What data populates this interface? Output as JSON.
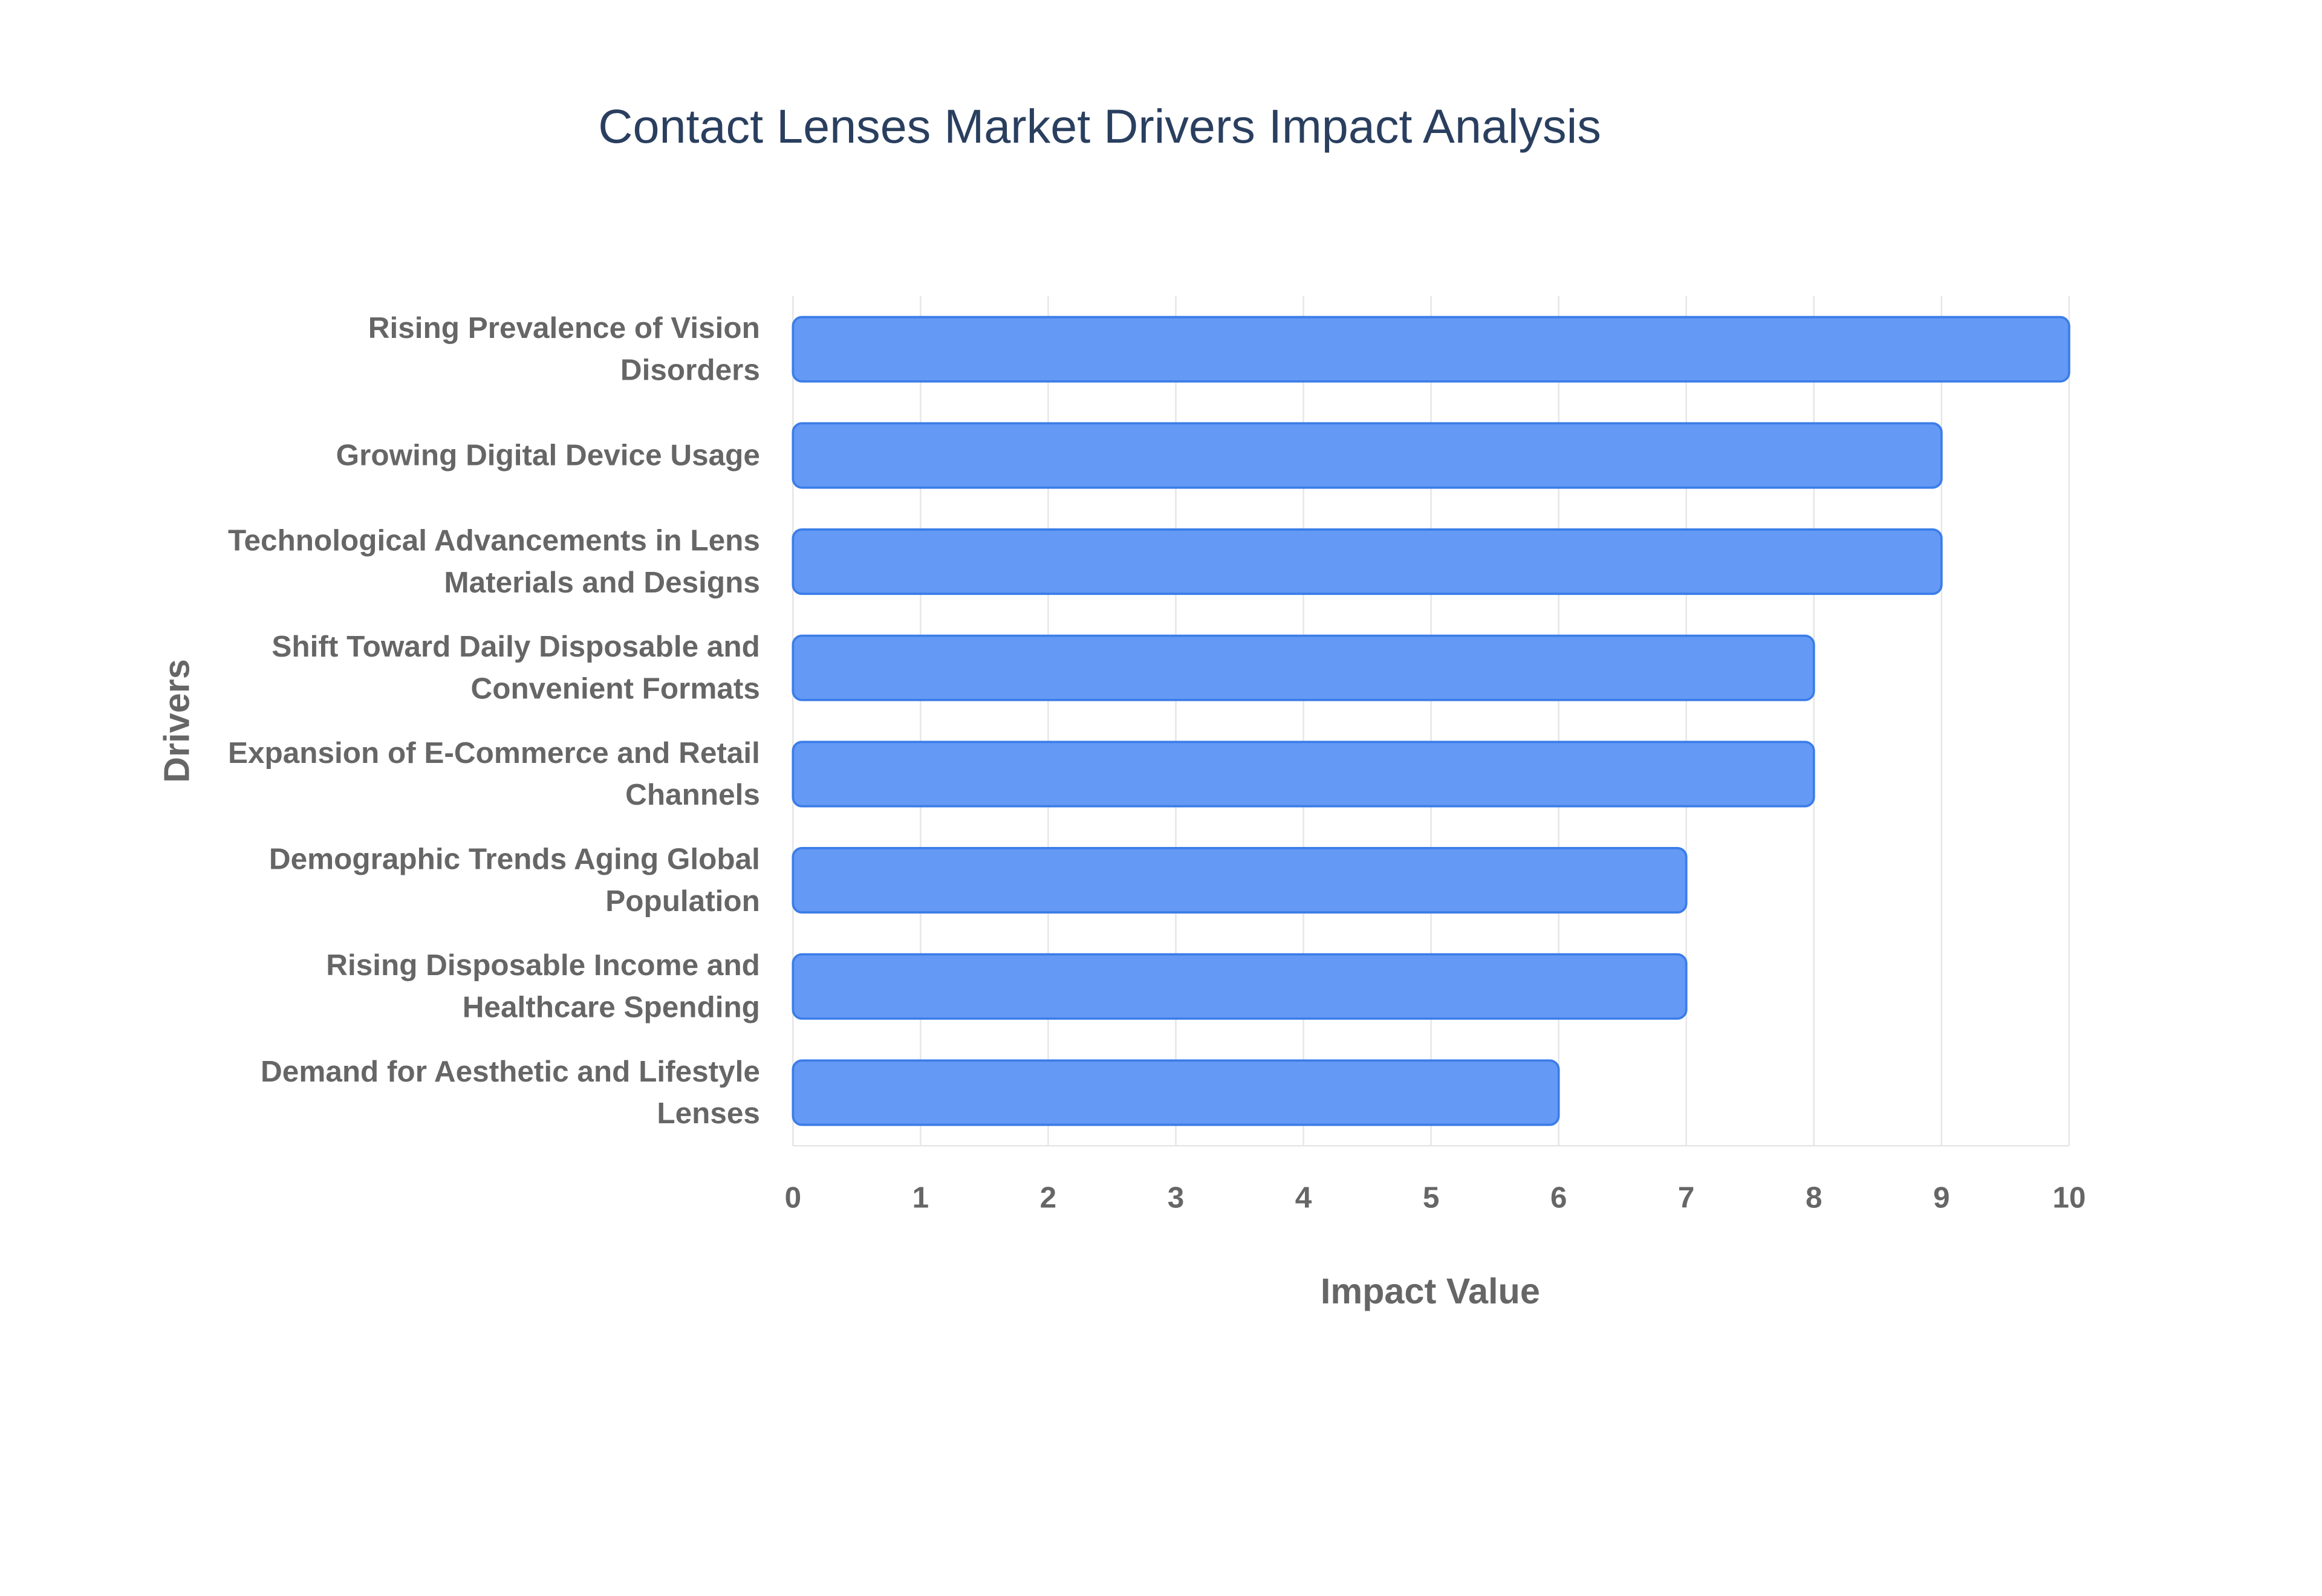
{
  "chart_data": {
    "type": "bar",
    "orientation": "horizontal",
    "title": "Contact Lenses Market Drivers Impact Analysis",
    "x_label": "Impact Value",
    "y_label": "Drivers",
    "categories": [
      "Rising Prevalence of Vision Disorders",
      "Growing Digital Device Usage",
      "Technological Advancements in Lens Materials and Designs",
      "Shift Toward Daily Disposable and Convenient Formats",
      "Expansion of E-Commerce and Retail Channels",
      "Demographic Trends Aging Global Population",
      "Rising Disposable Income and Healthcare Spending",
      "Demand for Aesthetic and Lifestyle Lenses"
    ],
    "values": [
      10,
      9,
      9,
      8,
      8,
      7,
      7,
      6
    ],
    "color": "#6499f5",
    "xlim": [
      0,
      10
    ],
    "xticks": [
      0,
      1,
      2,
      3,
      4,
      5,
      6,
      7,
      8,
      9,
      10
    ],
    "grid": true
  }
}
